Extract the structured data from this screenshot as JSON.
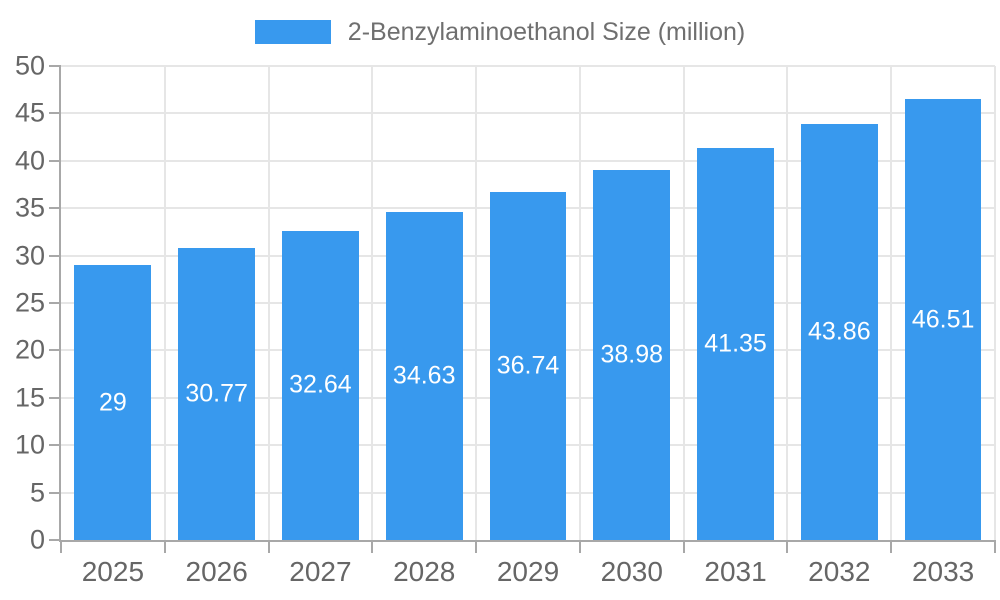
{
  "chart_data": {
    "type": "bar",
    "title": "2-Benzylaminoethanol Size (million)",
    "legend": [
      "2-Benzylaminoethanol Size (million)"
    ],
    "legend_position": "top",
    "categories": [
      "2025",
      "2026",
      "2027",
      "2028",
      "2029",
      "2030",
      "2031",
      "2032",
      "2033"
    ],
    "values": [
      29,
      30.77,
      32.64,
      34.63,
      36.74,
      38.98,
      41.35,
      43.86,
      46.51
    ],
    "value_labels": [
      "29",
      "30.77",
      "32.64",
      "34.63",
      "36.74",
      "38.98",
      "41.35",
      "43.86",
      "46.51"
    ],
    "xlabel": "",
    "ylabel": "",
    "ylim": [
      0,
      50
    ],
    "ytick_step": 5,
    "ytick_labels": [
      "0",
      "5",
      "10",
      "15",
      "20",
      "25",
      "30",
      "35",
      "40",
      "45",
      "50"
    ],
    "grid": true,
    "colors": {
      "bar": "#3899ee",
      "grid": "#e6e6e6",
      "axis": "#a8a8a8",
      "tick_text": "#666666",
      "legend_text": "#6f6f6f",
      "value_text": "#ffffff",
      "background": "#ffffff"
    }
  }
}
